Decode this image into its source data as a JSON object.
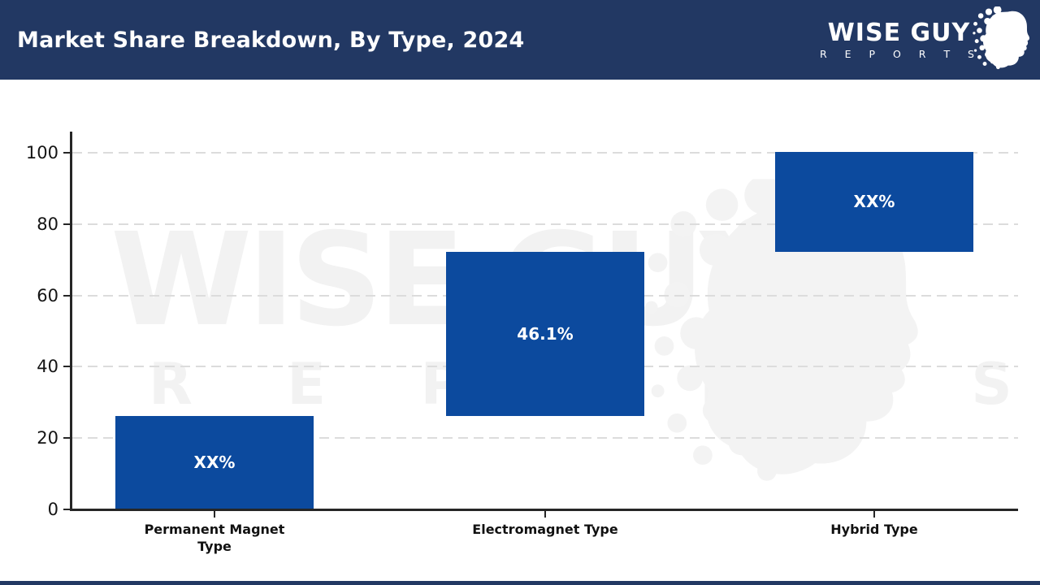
{
  "header": {
    "title": "Market Share Breakdown, By Type, 2024"
  },
  "logo": {
    "line1": "WISE GUY",
    "line2": "R E P O R T S"
  },
  "watermark": {
    "line1": "WISE GUY",
    "line2": "R E P O R T S"
  },
  "colors": {
    "header_bg": "#223863",
    "bar": "#0c4a9e",
    "axis": "#262626",
    "gridline": "#dcdcdc",
    "bar_label_text": "#ffffff",
    "tick_text": "#141414",
    "watermark": "#f2f2f2"
  },
  "chart_data": {
    "type": "bar",
    "subtype": "floating-segment-column",
    "title": "Market Share Breakdown, By Type, 2024",
    "categories": [
      "Permanent Magnet Type",
      "Electromagnet Type",
      "Hybrid Type"
    ],
    "bars": [
      {
        "category": "Permanent Magnet Type",
        "base": 0,
        "top": 26.2,
        "label": "XX%"
      },
      {
        "category": "Electromagnet Type",
        "base": 26.2,
        "top": 72.3,
        "label": "46.1%"
      },
      {
        "category": "Hybrid Type",
        "base": 72.3,
        "top": 100.2,
        "label": "XX%"
      }
    ],
    "xlabel": "",
    "ylabel": "",
    "ylim": [
      0,
      106
    ],
    "yticks": [
      0,
      20,
      40,
      60,
      80,
      100
    ],
    "grid": "horizontal-dashed",
    "legend": "none"
  }
}
